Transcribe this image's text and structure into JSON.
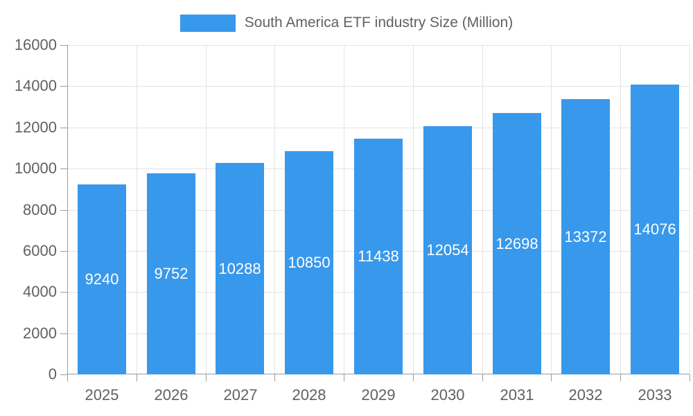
{
  "legend": {
    "label": "South America ETF industry Size (Million)"
  },
  "chart_data": {
    "type": "bar",
    "title": "South America ETF industry Size (Million)",
    "categories": [
      "2025",
      "2026",
      "2027",
      "2028",
      "2029",
      "2030",
      "2031",
      "2032",
      "2033"
    ],
    "values": [
      9240,
      9752,
      10288,
      10850,
      11438,
      12054,
      12698,
      13372,
      14076
    ],
    "value_labels": [
      "9240",
      "9752",
      "10288",
      "10850",
      "11438",
      "12054",
      "12698",
      "13372",
      "14076"
    ],
    "xlabel": "",
    "ylabel": "",
    "ylim": [
      0,
      16000
    ],
    "ytick_step": 2000,
    "ytick_labels": [
      "0",
      "2000",
      "4000",
      "6000",
      "8000",
      "10000",
      "12000",
      "14000",
      "16000"
    ],
    "grid": true,
    "legend_position": "top-center",
    "value_label_position": "center-of-bar"
  },
  "style": {
    "bar_color": "#3898EC",
    "grid_color": "#E3E3E3",
    "axis_color": "#9B9B9B",
    "text_color": "#616161",
    "value_label_color": "#FFFFFF",
    "background": "#FFFFFF"
  }
}
